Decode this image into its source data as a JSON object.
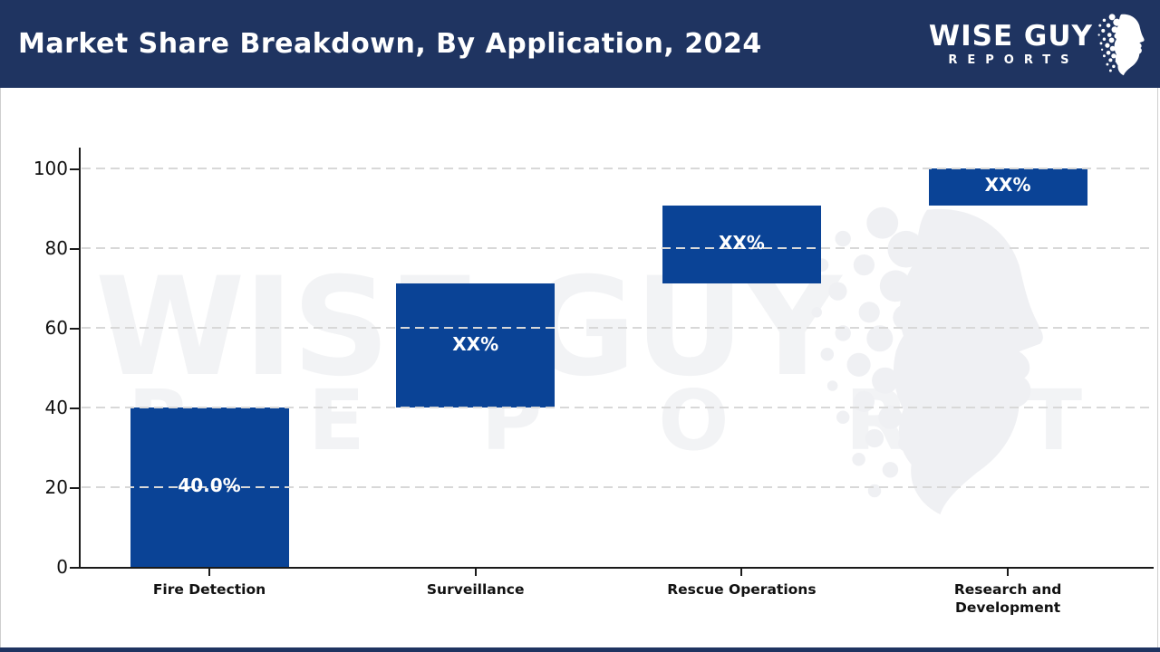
{
  "header": {
    "title": "Market Share Breakdown, By Application, 2024",
    "logo": {
      "wordmark": "WISE GUY",
      "subtext": "REPORTS"
    }
  },
  "watermark": {
    "line1": "WISE GUY",
    "line2": "R E P O R T S"
  },
  "chart_data": {
    "type": "bar",
    "subtype": "waterfall-floating-segments",
    "title": "Market Share Breakdown, By Application, 2024",
    "categories": [
      "Fire Detection",
      "Surveillance",
      "Rescue Operations",
      "Research and Development"
    ],
    "xtick_labels": [
      "Fire Detection",
      "Surveillance",
      "Rescue Operations",
      "Research and\nDevelopment"
    ],
    "bar_labels": [
      "40.0%",
      "XX%",
      "XX%",
      "XX%"
    ],
    "segments": [
      {
        "start": 0,
        "end": 40
      },
      {
        "start": 40,
        "end": 71
      },
      {
        "start": 71,
        "end": 90.5
      },
      {
        "start": 90.5,
        "end": 100
      }
    ],
    "values_pct_estimated": [
      40.0,
      31.0,
      19.5,
      9.5
    ],
    "yticks": [
      0,
      20,
      40,
      60,
      80,
      100
    ],
    "ylim": [
      0,
      105
    ],
    "grid": "horizontal-dashed",
    "legend": "none",
    "colors": {
      "bar": "#0a4396",
      "bar_label": "#ffffff",
      "grid": "#d8d8d8",
      "axis": "#1a1a1a",
      "tick_label": "#111111",
      "header_bg": "#1f3461",
      "footer_bg": "#1f3461",
      "title_text": "#ffffff",
      "watermark_text": "#f2f3f5",
      "watermark_face": "#eff0f3"
    }
  }
}
